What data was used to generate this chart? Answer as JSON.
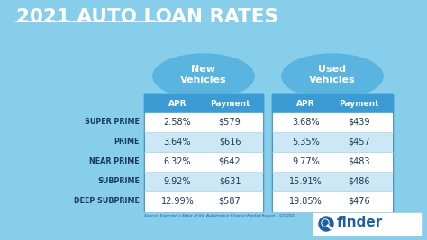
{
  "title": "2021 AUTO LOAN RATES",
  "bg_color": "#87ceeb",
  "bubble_color": "#5ab4e0",
  "table_header_color": "#2980c0",
  "table_subheader_color": "#3a9bd5",
  "row_color_odd": "#ffffff",
  "row_color_even": "#cce8f5",
  "row_divider_color": "#a8d4ec",
  "text_dark": "#1a3a5c",
  "text_white": "#ffffff",
  "row_labels": [
    "SUPER PRIME",
    "PRIME",
    "NEAR PRIME",
    "SUBPRIME",
    "DEEP SUBPRIME"
  ],
  "new_apr": [
    "2.58%",
    "3.64%",
    "6.32%",
    "9.92%",
    "12.99%"
  ],
  "new_payment": [
    "$579",
    "$616",
    "$642",
    "$631",
    "$587"
  ],
  "used_apr": [
    "3.68%",
    "5.35%",
    "9.77%",
    "15.91%",
    "19.85%"
  ],
  "used_payment": [
    "$439",
    "$457",
    "$483",
    "$486",
    "$476"
  ],
  "source_text": "Source: Experian's State of the Automotive Finance Market Report – Q3 2021",
  "finder_text": "finder",
  "new_label": "New\nVehicles",
  "used_label": "Used\nVehicles"
}
